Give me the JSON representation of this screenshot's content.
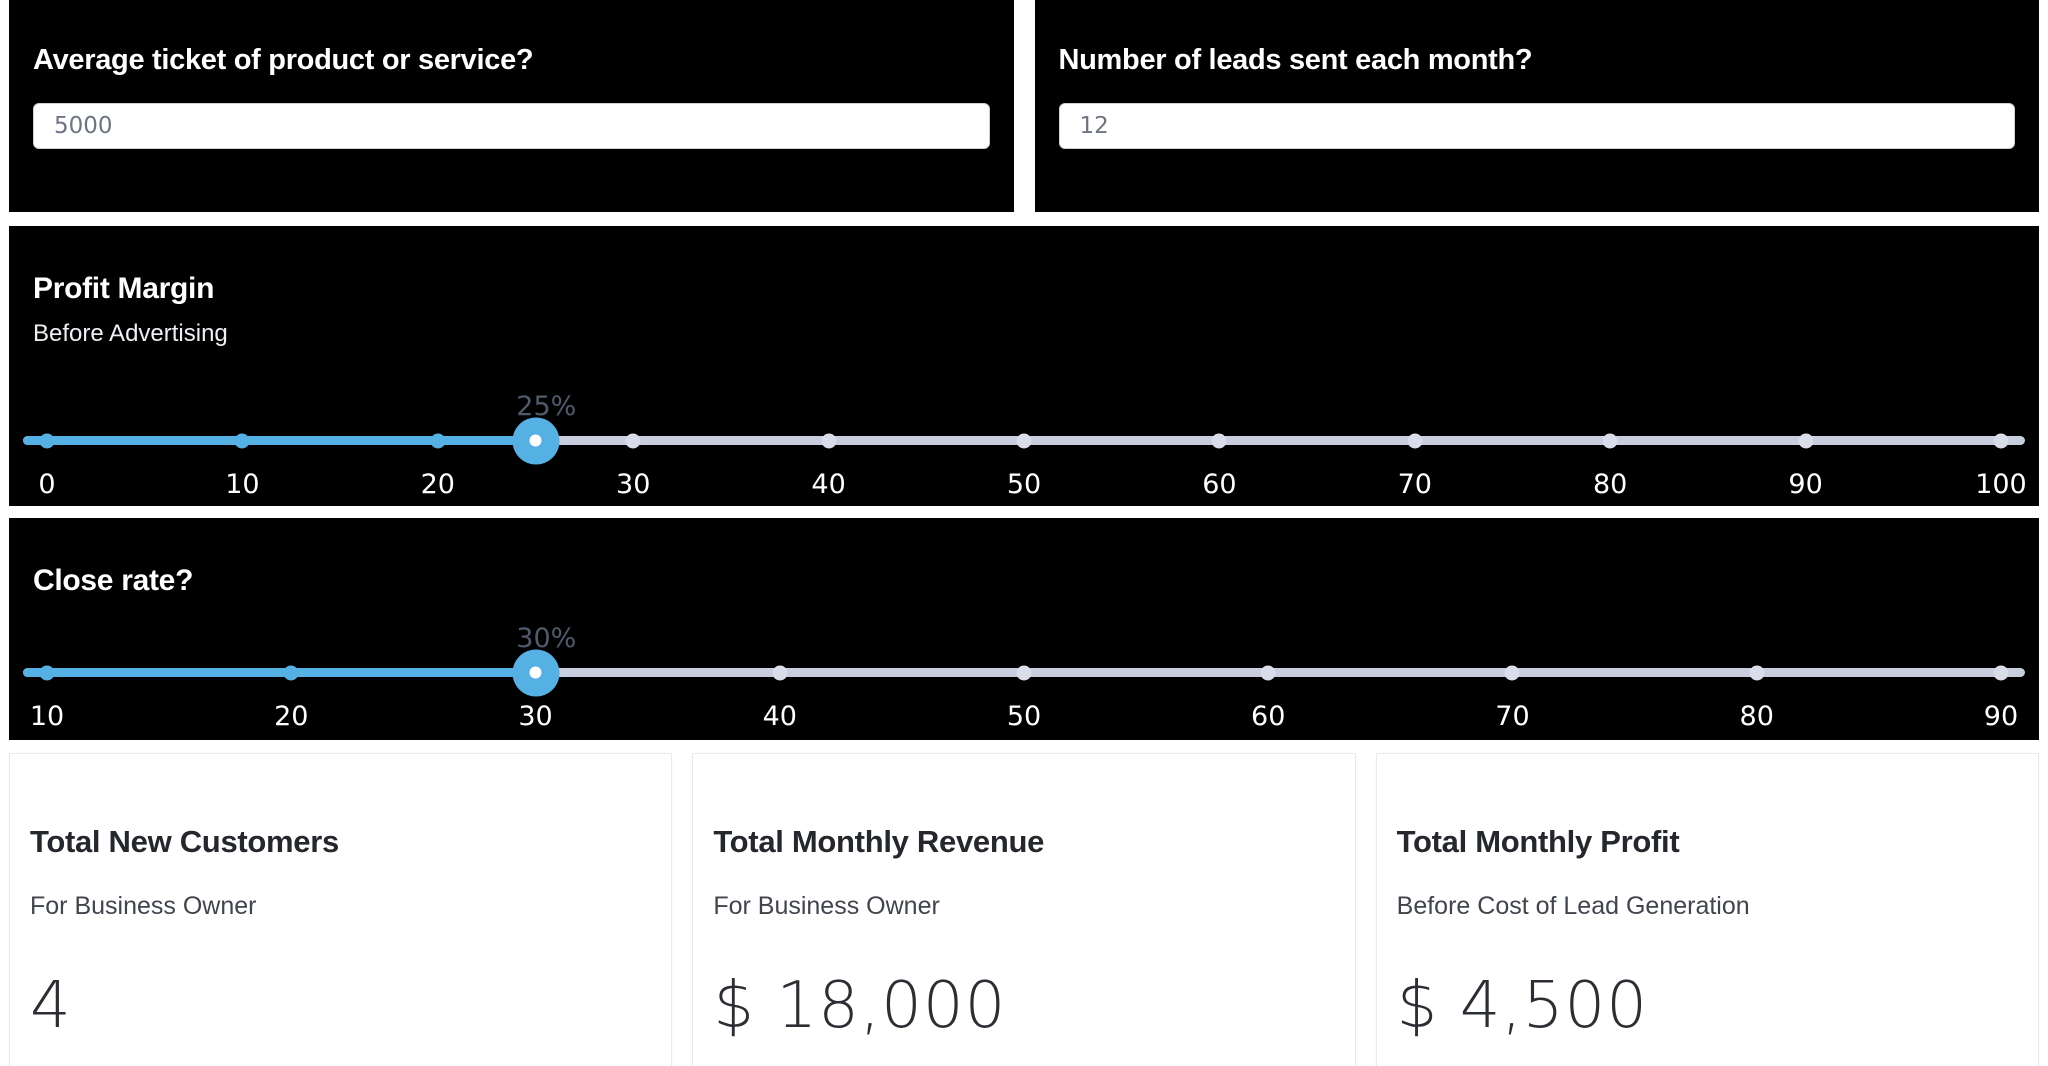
{
  "inputs": {
    "avg_ticket": {
      "label": "Average ticket of product or service?",
      "value": "5000"
    },
    "leads_per_month": {
      "label": "Number of leads sent each month?",
      "value": "12"
    }
  },
  "sliders": {
    "profit_margin": {
      "title": "Profit Margin",
      "subtitle": "Before Advertising",
      "value": 25,
      "value_label": "25%",
      "min": 0,
      "max": 100,
      "ticks": [
        "0",
        "10",
        "20",
        "30",
        "40",
        "50",
        "60",
        "70",
        "80",
        "90",
        "100"
      ]
    },
    "close_rate": {
      "title": "Close rate?",
      "value": 30,
      "value_label": "30%",
      "min": 10,
      "max": 90,
      "ticks": [
        "10",
        "20",
        "30",
        "40",
        "50",
        "60",
        "70",
        "80",
        "90"
      ]
    }
  },
  "results": [
    {
      "title": "Total New Customers",
      "subtitle": "For Business Owner",
      "value": "4"
    },
    {
      "title": "Total Monthly Revenue",
      "subtitle": "For Business Owner",
      "value": "$ 18,000"
    },
    {
      "title": "Total Monthly Profit",
      "subtitle": "Before Cost of Lead Generation",
      "value": "$ 4,500"
    }
  ],
  "colors": {
    "accent_blue": "#55b1e4",
    "track_gray": "#c9cede",
    "card_black": "#000000",
    "bubble_text": "#4f5a6a"
  }
}
